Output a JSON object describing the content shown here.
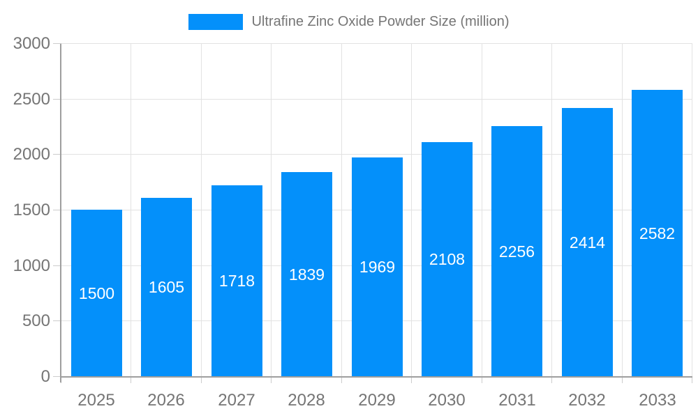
{
  "chart_data": {
    "type": "bar",
    "legend": "Ultrafine Zinc Oxide Powder Size (million)",
    "categories": [
      "2025",
      "2026",
      "2027",
      "2028",
      "2029",
      "2030",
      "2031",
      "2032",
      "2033"
    ],
    "values": [
      1500,
      1605,
      1718,
      1839,
      1969,
      2108,
      2256,
      2414,
      2582
    ],
    "value_labels": [
      "1500",
      "1605",
      "1718",
      "1839",
      "1969",
      "2108",
      "2256",
      "2414",
      "2582"
    ],
    "ylim": [
      0,
      3000
    ],
    "ytick_step": 500,
    "ytick_labels": [
      "0",
      "500",
      "1000",
      "1500",
      "2000",
      "2500",
      "3000"
    ],
    "grid": true,
    "legend_position": "top",
    "colors": {
      "bar": "#0490FA",
      "value_label": "#ffffff",
      "axis_label": "#757575",
      "legend_text": "#757575",
      "grid": "#e2e2e2",
      "axis_line": "#9e9e9e",
      "tick": "#cccccc",
      "background": "#ffffff"
    }
  }
}
